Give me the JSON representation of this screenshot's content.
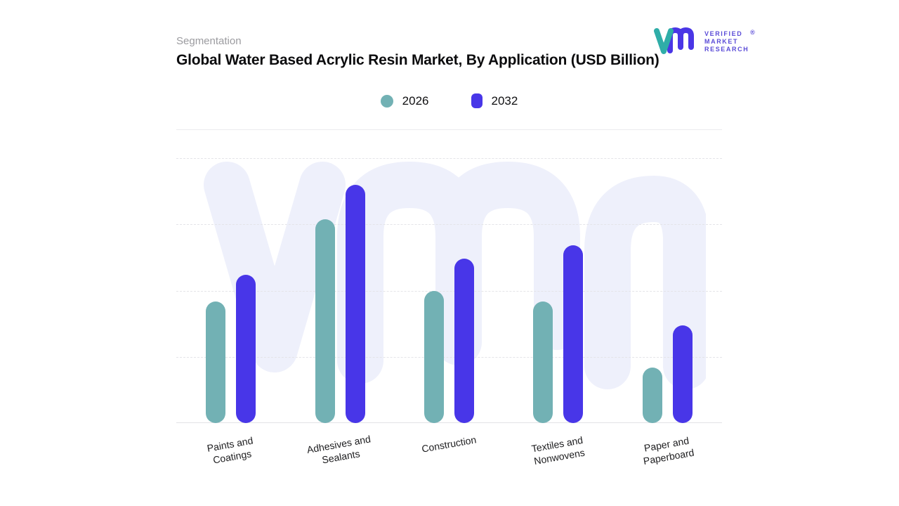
{
  "header": {
    "eyebrow": "Segmentation",
    "title": "Global Water Based Acrylic Resin Market, By Application (USD Billion)"
  },
  "logo": {
    "line1": "VERIFIED",
    "line2": "MARKET",
    "line3": "RESEARCH",
    "registered_mark": "®",
    "teal": "#2fada8",
    "purple": "#4a36e6"
  },
  "colors": {
    "series_2026": "#72b1b4",
    "series_2032": "#4836e8",
    "watermark": "#eef0fb",
    "gridline": "#e4e4e8"
  },
  "chart_data": {
    "type": "bar",
    "title": "Global Water Based Acrylic Resin Market, By Application (USD Billion)",
    "categories": [
      "Paints and\nCoatings",
      "Adhesives and\nSealants",
      "Construction",
      "Textiles and\nNonwovens",
      "Paper and\nPaperboard"
    ],
    "series": [
      {
        "name": "2026",
        "color": "#72b1b4",
        "values": [
          46,
          77,
          50,
          46,
          21
        ]
      },
      {
        "name": "2032",
        "color": "#4836e8",
        "values": [
          56,
          90,
          62,
          67,
          37
        ]
      }
    ],
    "xlabel": "",
    "ylabel": "",
    "ylim": [
      0,
      100
    ],
    "y_axis_tick_labels_shown": false,
    "grid": "horizontal-dashed",
    "legend_position": "top-center",
    "bar_shape": "rounded-pill"
  }
}
